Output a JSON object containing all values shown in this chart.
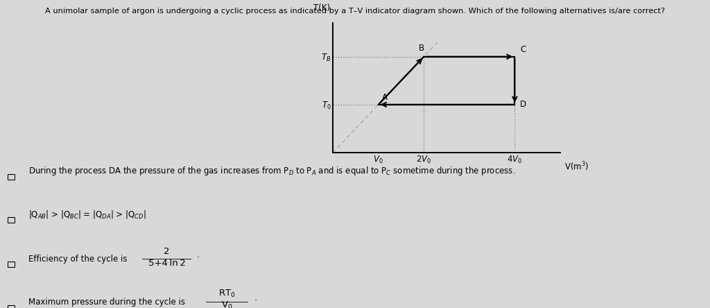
{
  "title": "A unimolar sample of argon is undergoing a cyclic process as indicated by a T–V indicator diagram shown. Which of the following alternatives is/are correct?",
  "bg_color": "#d8d8d8",
  "line_color": "#000000",
  "points": {
    "A": [
      1,
      1
    ],
    "B": [
      2,
      2
    ],
    "C": [
      4,
      2
    ],
    "D": [
      4,
      1
    ]
  }
}
